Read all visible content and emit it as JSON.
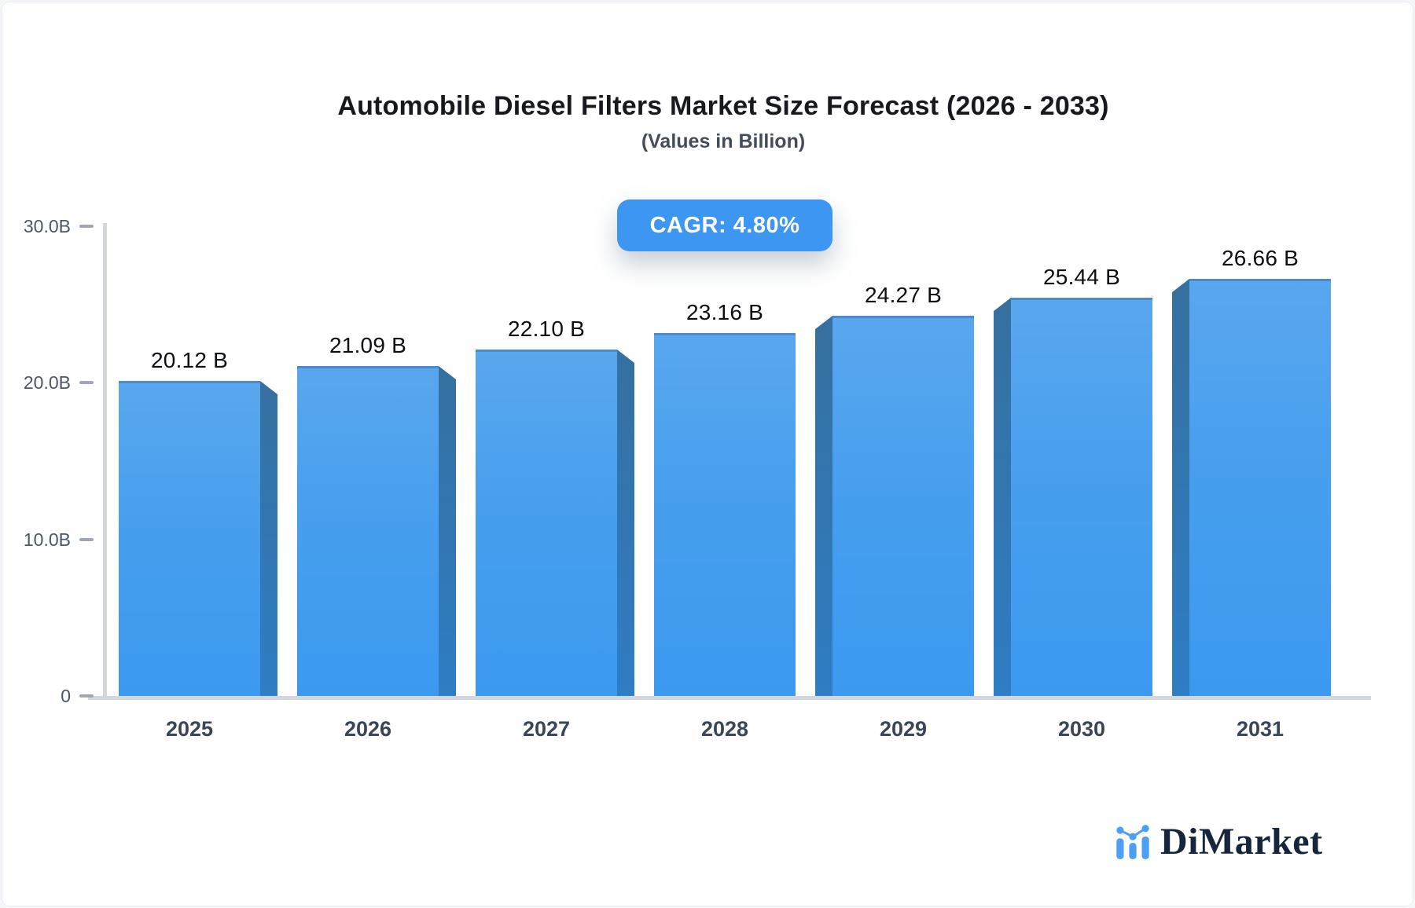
{
  "title": "Automobile Diesel Filters Market Size Forecast (2026 - 2033)",
  "subtitle": "(Values in Billion)",
  "badge": {
    "label": "CAGR: 4.80%",
    "color": "#3d97f2"
  },
  "chart_data": {
    "type": "bar",
    "title": "Automobile Diesel Filters Market Size Forecast (2026 - 2033)",
    "subtitle": "(Values in Billion)",
    "xlabel": "",
    "ylabel": "",
    "categories": [
      "2025",
      "2026",
      "2027",
      "2028",
      "2029",
      "2030",
      "2031"
    ],
    "values": [
      20.12,
      21.09,
      22.1,
      23.16,
      24.27,
      25.44,
      26.66
    ],
    "value_labels": [
      "20.12 B",
      "21.09 B",
      "22.10 B",
      "23.16 B",
      "24.27 B",
      "25.44 B",
      "26.66 B"
    ],
    "ylim": [
      0,
      30
    ],
    "y_ticks": [
      {
        "value": 30,
        "label": "30.0B"
      },
      {
        "value": 20,
        "label": "20.0B"
      },
      {
        "value": 10,
        "label": "10.0B"
      },
      {
        "value": 0,
        "label": "0"
      }
    ],
    "grid": false,
    "legend": false,
    "bar_lean": [
      "right",
      "right",
      "right",
      "flat",
      "left",
      "left",
      "left"
    ],
    "colors": {
      "bar_top": "#59a7ee",
      "bar_bottom": "#3c99f0",
      "bar_side": "#2f7dc4",
      "axis": "#d2d6dd",
      "value_label": "#0c0e12",
      "category_label": "#39455a"
    }
  },
  "logo": {
    "text": "DiMarket",
    "icon": "mini-bar-chart-icon",
    "icon_color": "#4b9ff5"
  }
}
